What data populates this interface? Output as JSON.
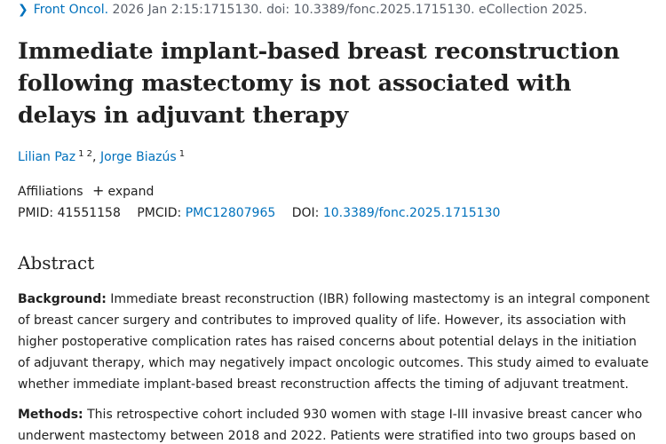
{
  "citation": {
    "chevron": "chevron-right-icon",
    "journal": "Front Oncol.",
    "details": "2026 Jan 2:15:1715130. doi: 10.3389/fonc.2025.1715130. eCollection 2025."
  },
  "title": "Immediate implant-based breast reconstruction following mastectomy is not associated with delays in adjuvant therapy",
  "authors": [
    {
      "name": "Lilian Paz",
      "affils": "1 2"
    },
    {
      "name": "Jorge Biazús",
      "affils": "1"
    }
  ],
  "affiliations": {
    "label": "Affiliations",
    "expand_label": "expand"
  },
  "ids": {
    "pmid_label": "PMID:",
    "pmid_value": "41551158",
    "pmcid_label": "PMCID:",
    "pmcid_value": "PMC12807965",
    "doi_label": "DOI:",
    "doi_value": "10.3389/fonc.2025.1715130"
  },
  "abstract": {
    "heading": "Abstract",
    "background_label": "Background:",
    "background_text": "Immediate breast reconstruction (IBR) following mastectomy is an integral component of breast cancer surgery and contributes to improved quality of life. However, its association with higher postoperative complication rates has raised concerns about potential delays in the initiation of adjuvant therapy, which may negatively impact oncologic outcomes. This study aimed to evaluate whether immediate implant-based breast reconstruction affects the timing of adjuvant treatment.",
    "methods_label": "Methods:",
    "methods_text": "This retrospective cohort included 930 women with stage I-III invasive breast cancer who underwent mastectomy between 2018 and 2022. Patients were stratified into two groups based on"
  }
}
